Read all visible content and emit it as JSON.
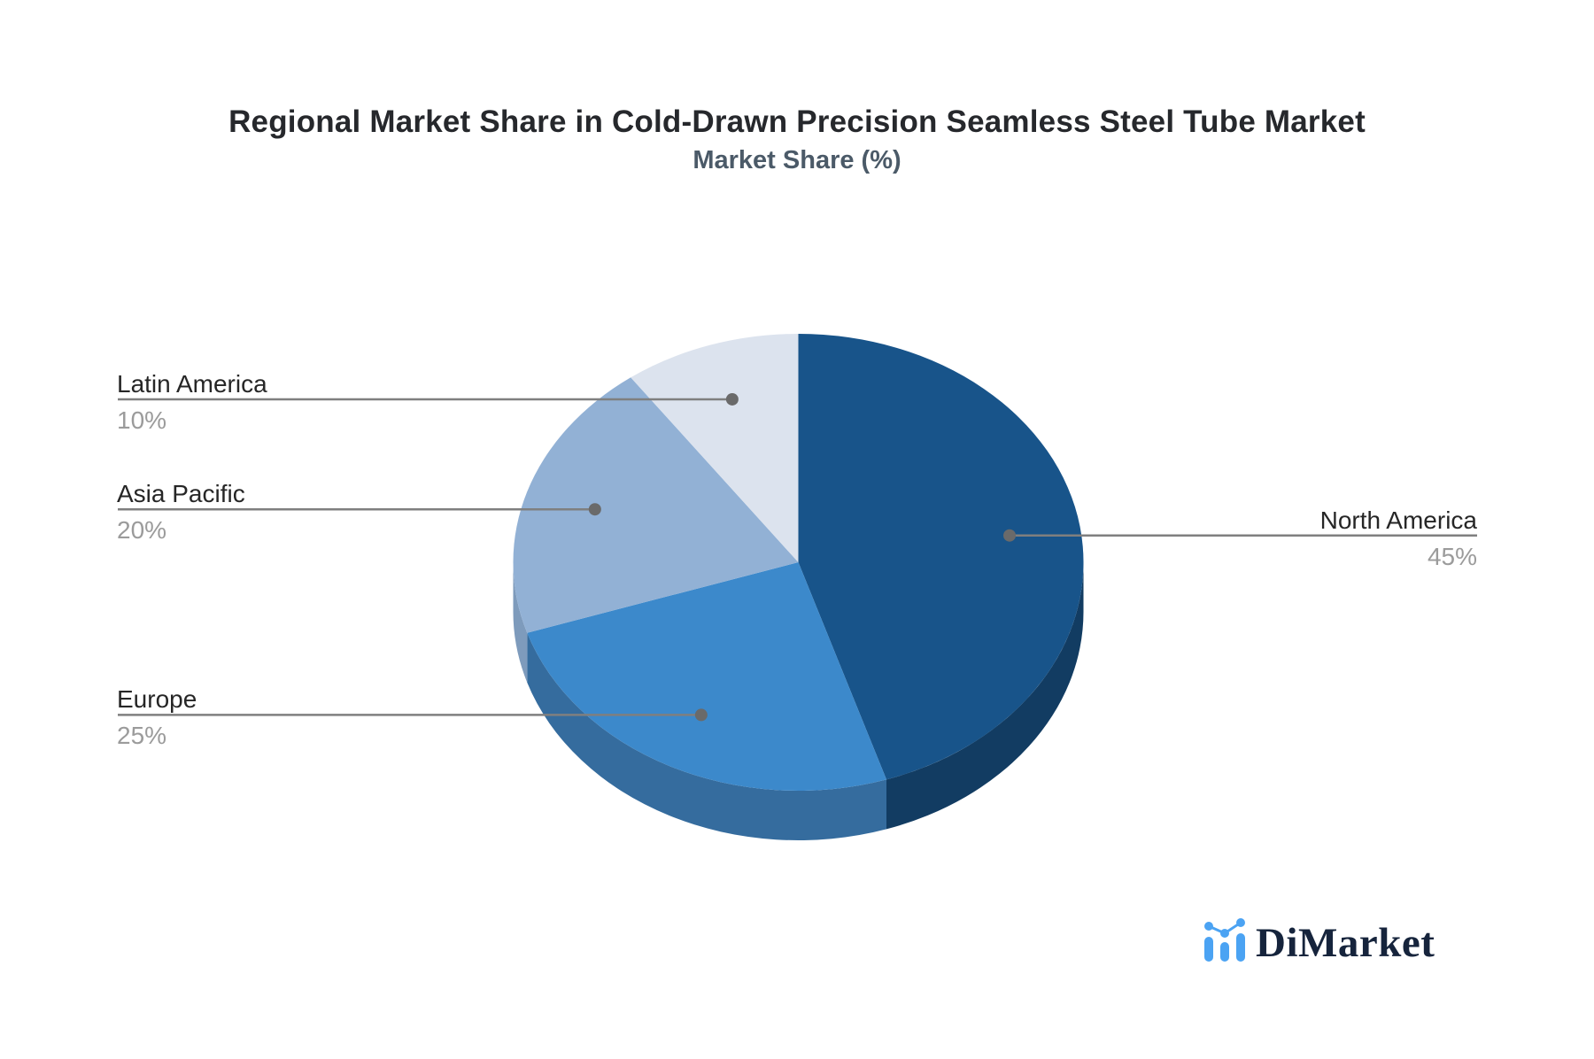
{
  "chart_data": {
    "type": "pie",
    "style": "3d",
    "title": "Regional Market Share in Cold-Drawn Precision Seamless Steel Tube Market",
    "subtitle": "Market Share (%)",
    "unit": "%",
    "start_angle": "12-oclock",
    "direction": "clockwise",
    "legend": false,
    "slices": [
      {
        "label": "North America",
        "value": 45,
        "percent_label": "45%",
        "color": "#18548A",
        "side_color": "#123C62",
        "label_side": "right"
      },
      {
        "label": "Europe",
        "value": 25,
        "percent_label": "25%",
        "color": "#3C89CB",
        "side_color": "#356C9E",
        "label_side": "left"
      },
      {
        "label": "Asia Pacific",
        "value": 20,
        "percent_label": "20%",
        "color": "#92B1D5",
        "side_color": "#7E9BBC",
        "label_side": "left"
      },
      {
        "label": "Latin America",
        "value": 10,
        "percent_label": "10%",
        "color": "#DCE3EE",
        "side_color": "#B9C4D6",
        "label_side": "left"
      }
    ],
    "leader_line_color": "#7f7f7f",
    "leader_dot_color": "#6a6a6a",
    "label_color": "#262626",
    "percent_color": "#9b9b9b"
  },
  "watermark": {
    "text": "DiMarket",
    "icon": "bar-chart-icon",
    "icon_color": "#4BA3F3",
    "text_color": "#16243c"
  }
}
